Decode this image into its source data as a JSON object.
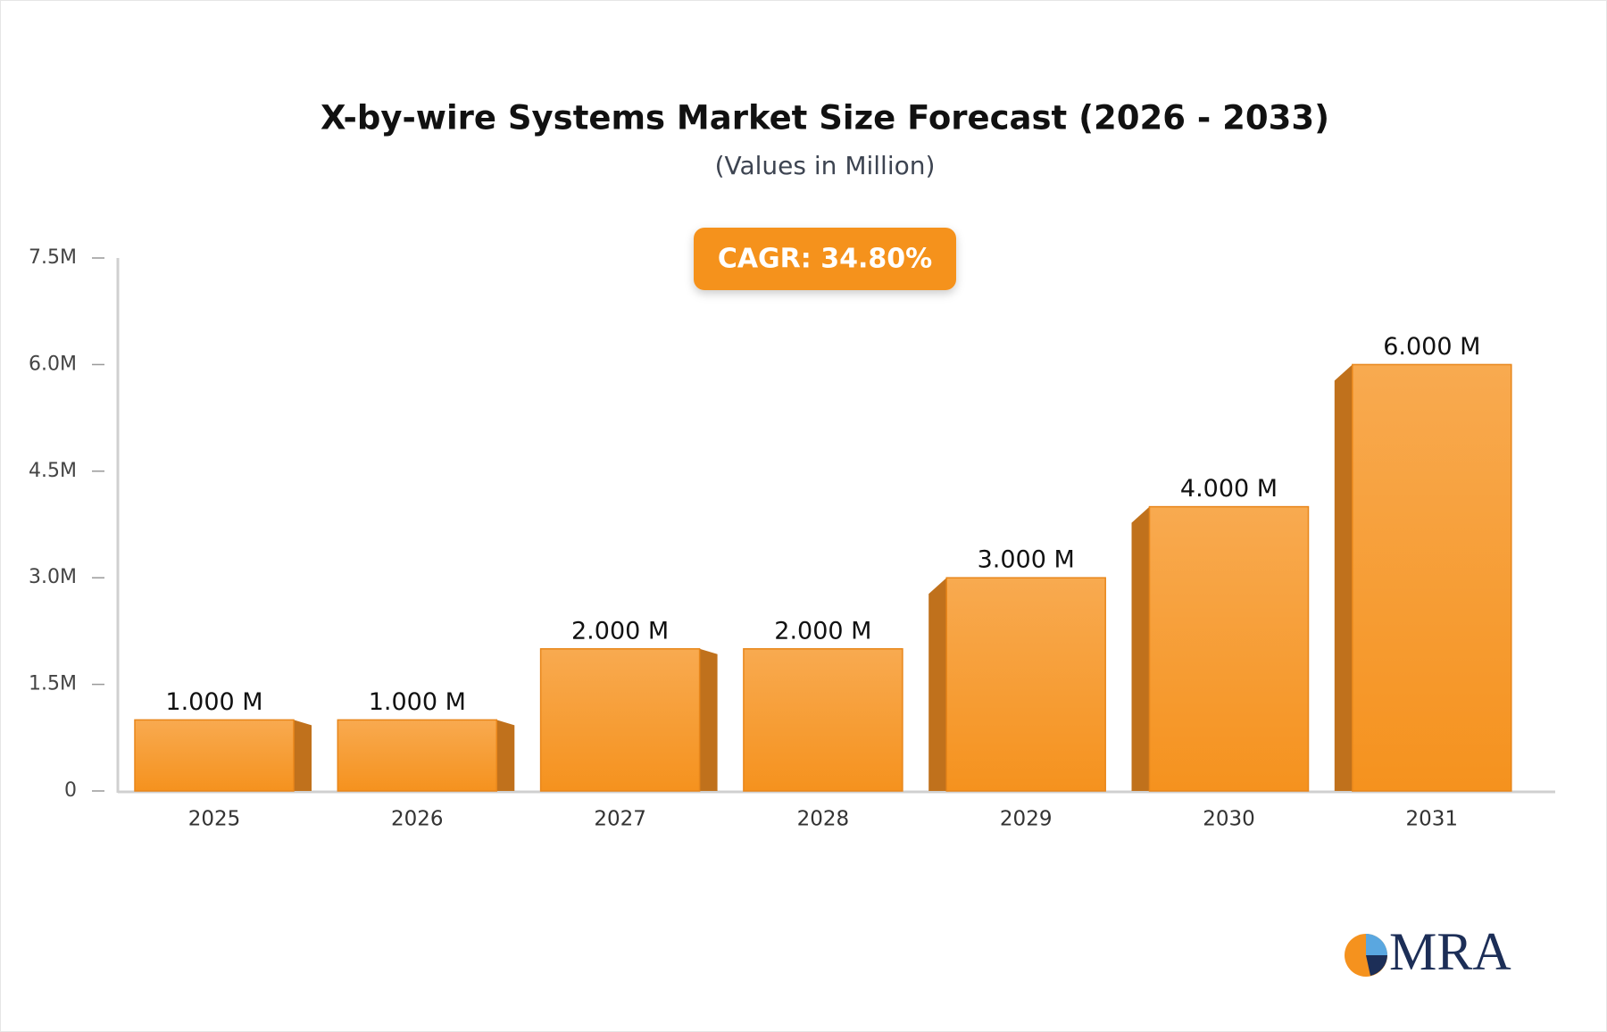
{
  "chart_data": {
    "type": "bar",
    "title": "X-by-wire Systems Market Size Forecast (2026 - 2033)",
    "subtitle": "(Values in Million)",
    "annotation": "CAGR: 34.80%",
    "categories": [
      "2025",
      "2026",
      "2027",
      "2028",
      "2029",
      "2030",
      "2031"
    ],
    "values": [
      1000000,
      1000000,
      2000000,
      2000000,
      3000000,
      4000000,
      6000000
    ],
    "value_labels": [
      "1.000 M",
      "1.000 M",
      "2.000 M",
      "2.000 M",
      "3.000 M",
      "4.000 M",
      "6.000 M"
    ],
    "color": "#f6982b",
    "ylim": [
      0,
      7500000
    ],
    "yticks": [
      0,
      {
        "value": 1500000,
        "label": "1.5M"
      },
      {
        "value": 3000000,
        "label": "3.0M"
      },
      {
        "value": 4500000,
        "label": "4.5M"
      },
      {
        "value": 6000000,
        "label": "6.0M"
      },
      {
        "value": 7500000,
        "label": "7.5M"
      }
    ],
    "grid": false
  },
  "logo": "MRA"
}
